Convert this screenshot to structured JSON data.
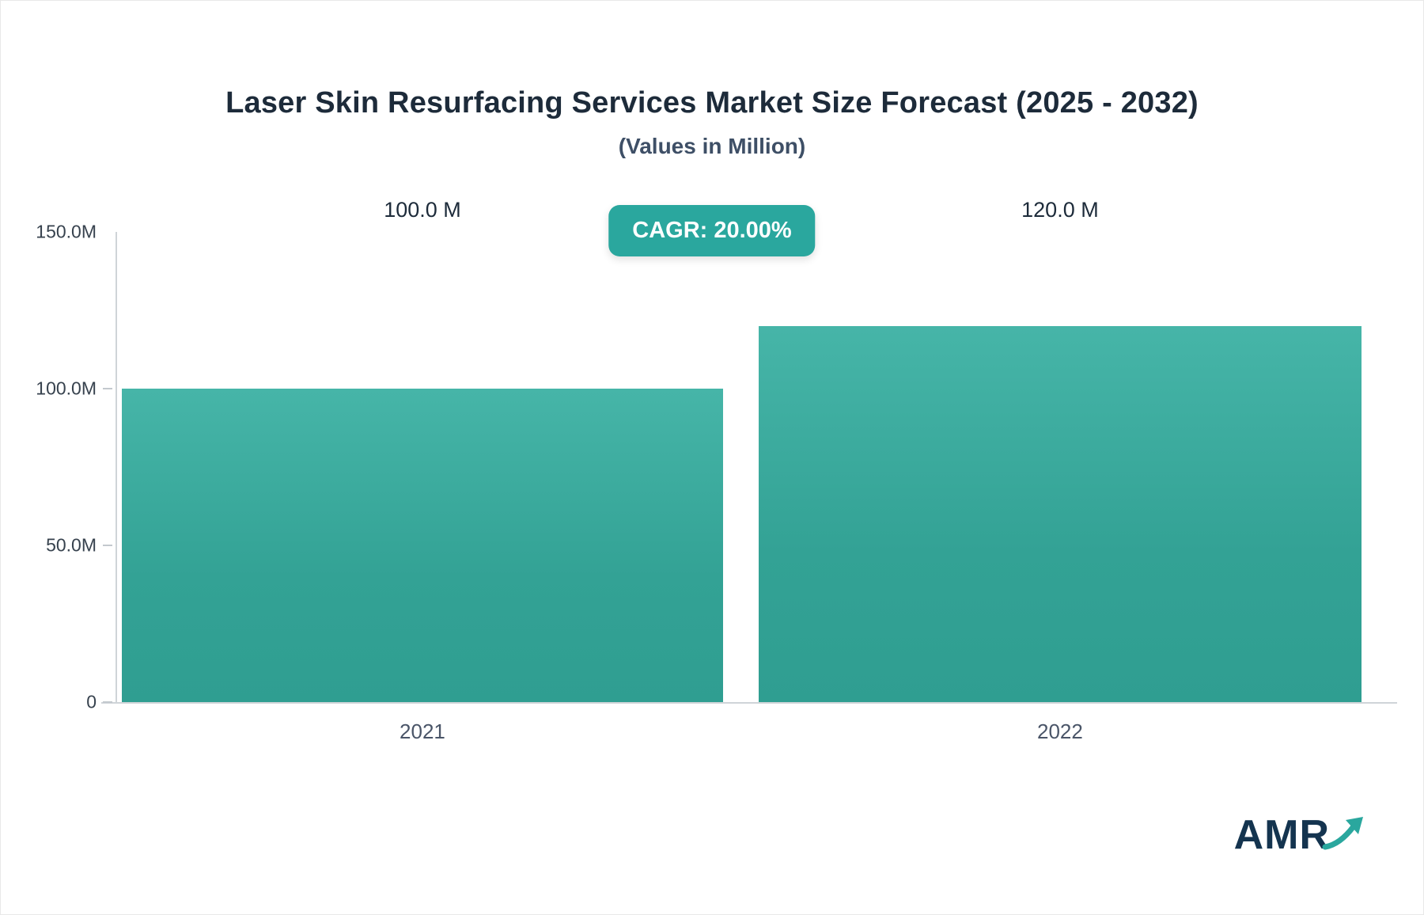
{
  "page": {
    "title": "Laser Skin Resurfacing Services Market Size Forecast (2025 - 2032)",
    "subtitle": "(Values in Million)",
    "cagr_badge": "CAGR: 20.00%",
    "logo_text": "AMR"
  },
  "chart_data": {
    "type": "bar",
    "title": "Laser Skin Resurfacing Services Market Size Forecast (2025 - 2032)",
    "subtitle": "(Values in Million)",
    "cagr": "20.00%",
    "categories": [
      "2021",
      "2022"
    ],
    "values": [
      100,
      120
    ],
    "value_labels": [
      "100.0 M",
      "120.0 M"
    ],
    "unit": "Million",
    "xlabel": "",
    "ylabel": "",
    "ylim": [
      0,
      150
    ],
    "yticks": [
      "150.0M",
      "100.0M",
      "50.0M",
      "0"
    ],
    "ytick_values": [
      150,
      100,
      50,
      0
    ],
    "grid": false,
    "legend": false,
    "bar_color_top": "#46b5a8",
    "bar_color_bottom": "#2f9e91",
    "accent_color": "#2aa79e",
    "axis_color": "#cfd4d8",
    "title_color": "#1d2b3a"
  }
}
